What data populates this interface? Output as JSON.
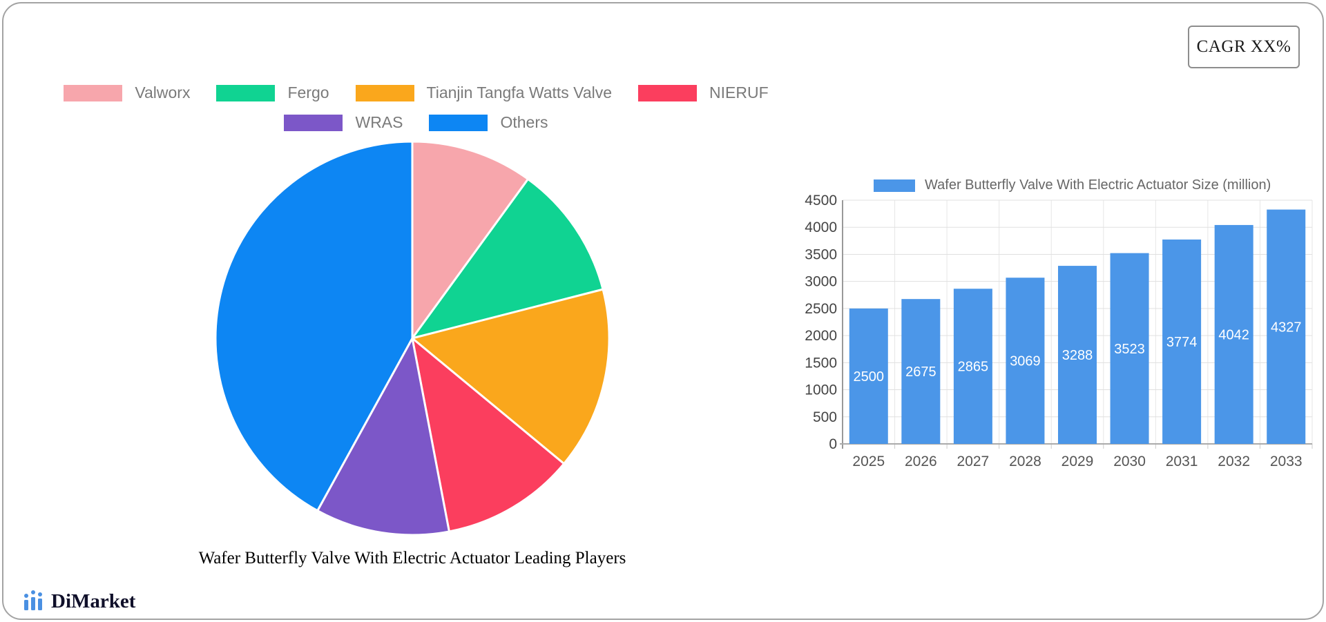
{
  "cagr_box": {
    "label": "CAGR XX%"
  },
  "brand": {
    "name": "DiMarket",
    "text_color": "#10102a",
    "icon_color": "#4a90e2"
  },
  "pie_section": {
    "title": "Wafer Butterfly Valve With Electric Actuator Leading Players",
    "legend_rows": [
      [
        "Valworx",
        "Fergo",
        "Tianjin Tangfa Watts Valve",
        "NIERUF"
      ],
      [
        "WRAS",
        "Others"
      ]
    ]
  },
  "bar_section": {
    "legend_label": "Wafer Butterfly Valve With Electric Actuator Size (million)"
  },
  "chart_data": [
    {
      "type": "pie",
      "title": "Wafer Butterfly Valve With Electric Actuator Leading Players",
      "labels": [
        "Valworx",
        "Fergo",
        "Tianjin Tangfa Watts Valve",
        "NIERUF",
        "WRAS",
        "Others"
      ],
      "values": [
        10,
        11,
        15,
        11,
        11,
        42
      ],
      "value_unit": "percent share (estimated from slice angles)",
      "colors": [
        "#f7a6ac",
        "#10d392",
        "#faa71c",
        "#fb3e5e",
        "#7c57c8",
        "#0d86f3"
      ],
      "legend_position": "top",
      "start_angle_deg": 0,
      "direction": "clockwise",
      "slice_border_color": "#ffffff"
    },
    {
      "type": "bar",
      "legend": [
        "Wafer Butterfly Valve With Electric Actuator Size (million)"
      ],
      "categories": [
        "2025",
        "2026",
        "2027",
        "2028",
        "2029",
        "2030",
        "2031",
        "2032",
        "2033"
      ],
      "values": [
        2500,
        2675,
        2865,
        3069,
        3288,
        3523,
        3774,
        4042,
        4327
      ],
      "ylim": [
        0,
        4500
      ],
      "ytick_step": 500,
      "grid": true,
      "legend_position": "top",
      "bar_color": "#4b96e8",
      "value_label_color": "#ffffff",
      "axis_label_color": "#444444",
      "grid_color": "#e0e0e0"
    }
  ]
}
